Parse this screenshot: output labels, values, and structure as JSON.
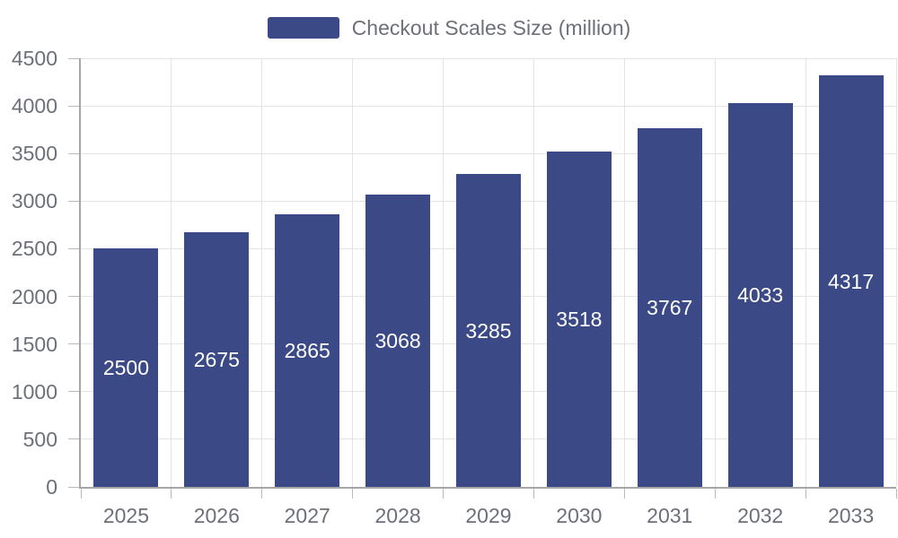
{
  "legend": {
    "label": "Checkout Scales Size (million)"
  },
  "chart_data": {
    "type": "bar",
    "title": "Checkout Scales Size (million)",
    "series_name": "Checkout Scales Size (million)",
    "categories": [
      "2025",
      "2026",
      "2027",
      "2028",
      "2029",
      "2030",
      "2031",
      "2032",
      "2033"
    ],
    "values": [
      2500,
      2675,
      2865,
      3068,
      3285,
      3518,
      3767,
      4033,
      4317
    ],
    "xlabel": "",
    "ylabel": "",
    "ylim": [
      0,
      4500
    ],
    "ytick_step": 500,
    "grid": true,
    "legend_position": "top",
    "bar_labels_inside": true,
    "colors": {
      "bar": "#3B4A87",
      "bar_label": "#FFFFFF",
      "axis_label": "#6E7079",
      "axis_line": "#A6A6A6",
      "tick": "#BBBBBB",
      "gridline": "#E4E4E4",
      "legend_text": "#6E7079"
    }
  }
}
